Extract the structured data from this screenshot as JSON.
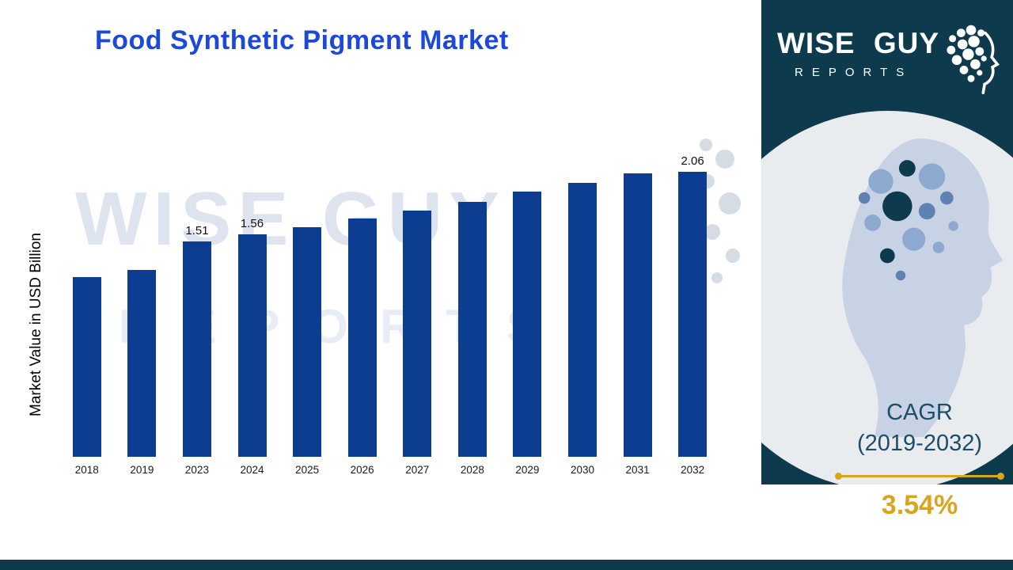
{
  "title": "Food Synthetic Pigment Market",
  "watermark": {
    "line1": "WISE GUY",
    "line2": "REPORTS"
  },
  "brand": {
    "name": "WISE GUY",
    "subtitle": "REPORTS"
  },
  "cagr": {
    "label_line1": "CAGR",
    "label_line2": "(2019-2032)",
    "value": "3.54%",
    "accent_color": "#d9a51c",
    "label_color": "#1d4d68"
  },
  "colors": {
    "bar": "#0d3d91",
    "title": "#1d49d8",
    "panel": "#0d3b4d",
    "gold": "#d9a51c",
    "circle": "#e9ecef"
  },
  "chart_data": {
    "type": "bar",
    "title": "Food Synthetic Pigment Market",
    "xlabel": "",
    "ylabel": "Market Value in USD Billion",
    "categories": [
      "2018",
      "2019",
      "2023",
      "2024",
      "2025",
      "2026",
      "2027",
      "2028",
      "2029",
      "2030",
      "2031",
      "2032"
    ],
    "values": [
      1.26,
      1.31,
      1.51,
      1.56,
      1.61,
      1.67,
      1.73,
      1.79,
      1.86,
      1.92,
      1.99,
      2.06
    ],
    "data_labels": {
      "2023": "1.51",
      "2024": "1.56",
      "2032": "2.06"
    },
    "bar_color": "#0d3d91",
    "ylim": [
      0,
      2.2
    ],
    "grid": false,
    "legend": false
  }
}
